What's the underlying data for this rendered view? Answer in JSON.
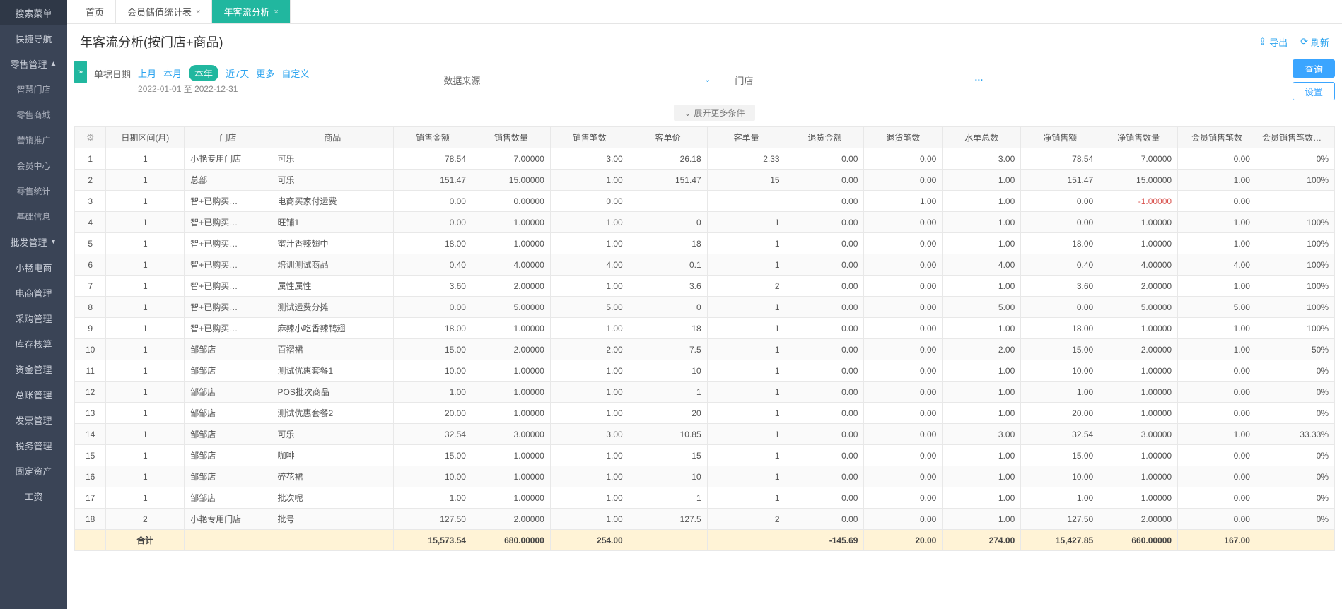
{
  "sidebar": {
    "items": [
      {
        "label": "搜索菜单",
        "sub": false
      },
      {
        "label": "快捷导航",
        "sub": false
      },
      {
        "label": "零售管理",
        "sub": false,
        "arrow": "▲"
      },
      {
        "label": "智慧门店",
        "sub": true
      },
      {
        "label": "零售商城",
        "sub": true
      },
      {
        "label": "营销推广",
        "sub": true
      },
      {
        "label": "会员中心",
        "sub": true
      },
      {
        "label": "零售统计",
        "sub": true
      },
      {
        "label": "基础信息",
        "sub": true
      },
      {
        "label": "批发管理",
        "sub": false,
        "arrow": "▼"
      },
      {
        "label": "小畅电商",
        "sub": false
      },
      {
        "label": "电商管理",
        "sub": false
      },
      {
        "label": "采购管理",
        "sub": false
      },
      {
        "label": "库存核算",
        "sub": false
      },
      {
        "label": "资金管理",
        "sub": false
      },
      {
        "label": "总账管理",
        "sub": false
      },
      {
        "label": "发票管理",
        "sub": false
      },
      {
        "label": "税务管理",
        "sub": false
      },
      {
        "label": "固定资产",
        "sub": false
      },
      {
        "label": "工资",
        "sub": false
      }
    ]
  },
  "tabs": [
    {
      "label": "首页",
      "closable": false,
      "active": false
    },
    {
      "label": "会员储值统计表",
      "closable": true,
      "active": false
    },
    {
      "label": "年客流分析",
      "closable": true,
      "active": true
    }
  ],
  "page": {
    "title": "年客流分析(按门店+商品)",
    "actions": {
      "export": "导出",
      "refresh": "刷新"
    }
  },
  "filters": {
    "date_label": "单据日期",
    "date_options": [
      "上月",
      "本月",
      "本年",
      "近7天",
      "更多",
      "自定义"
    ],
    "date_active": "本年",
    "date_range": "2022-01-01 至 2022-12-31",
    "source_label": "数据来源",
    "store_label": "门店",
    "query_btn": "查询",
    "setting_btn": "设置",
    "expand_btn": "展开更多条件"
  },
  "table": {
    "columns": [
      "",
      "日期区间(月)",
      "门店",
      "商品",
      "销售金额",
      "销售数量",
      "销售笔数",
      "客单价",
      "客单量",
      "退货金额",
      "退货笔数",
      "水单总数",
      "净销售额",
      "净销售数量",
      "会员销售笔数",
      "会员销售笔数占比"
    ],
    "rows": [
      [
        "1",
        "1",
        "小艳专用门店",
        "可乐",
        "78.54",
        "7.00000",
        "3.00",
        "26.18",
        "2.33",
        "0.00",
        "0.00",
        "3.00",
        "78.54",
        "7.00000",
        "0.00",
        "0%"
      ],
      [
        "2",
        "1",
        "总部",
        "可乐",
        "151.47",
        "15.00000",
        "1.00",
        "151.47",
        "15",
        "0.00",
        "0.00",
        "1.00",
        "151.47",
        "15.00000",
        "1.00",
        "100%"
      ],
      [
        "3",
        "1",
        "智+已购买…",
        "电商买家付运费",
        "0.00",
        "0.00000",
        "0.00",
        "",
        "",
        "0.00",
        "1.00",
        "1.00",
        "0.00",
        "-1.00000",
        "0.00",
        ""
      ],
      [
        "4",
        "1",
        "智+已购买…",
        "旺铺1",
        "0.00",
        "1.00000",
        "1.00",
        "0",
        "1",
        "0.00",
        "0.00",
        "1.00",
        "0.00",
        "1.00000",
        "1.00",
        "100%"
      ],
      [
        "5",
        "1",
        "智+已购买…",
        "蜜汁香辣翅中",
        "18.00",
        "1.00000",
        "1.00",
        "18",
        "1",
        "0.00",
        "0.00",
        "1.00",
        "18.00",
        "1.00000",
        "1.00",
        "100%"
      ],
      [
        "6",
        "1",
        "智+已购买…",
        "培训测试商品",
        "0.40",
        "4.00000",
        "4.00",
        "0.1",
        "1",
        "0.00",
        "0.00",
        "4.00",
        "0.40",
        "4.00000",
        "4.00",
        "100%"
      ],
      [
        "7",
        "1",
        "智+已购买…",
        "属性属性",
        "3.60",
        "2.00000",
        "1.00",
        "3.6",
        "2",
        "0.00",
        "0.00",
        "1.00",
        "3.60",
        "2.00000",
        "1.00",
        "100%"
      ],
      [
        "8",
        "1",
        "智+已购买…",
        "测试运费分摊",
        "0.00",
        "5.00000",
        "5.00",
        "0",
        "1",
        "0.00",
        "0.00",
        "5.00",
        "0.00",
        "5.00000",
        "5.00",
        "100%"
      ],
      [
        "9",
        "1",
        "智+已购买…",
        "麻辣小吃香辣鸭翅",
        "18.00",
        "1.00000",
        "1.00",
        "18",
        "1",
        "0.00",
        "0.00",
        "1.00",
        "18.00",
        "1.00000",
        "1.00",
        "100%"
      ],
      [
        "10",
        "1",
        "邹邹店",
        "百褶裙",
        "15.00",
        "2.00000",
        "2.00",
        "7.5",
        "1",
        "0.00",
        "0.00",
        "2.00",
        "15.00",
        "2.00000",
        "1.00",
        "50%"
      ],
      [
        "11",
        "1",
        "邹邹店",
        "测试优惠套餐1",
        "10.00",
        "1.00000",
        "1.00",
        "10",
        "1",
        "0.00",
        "0.00",
        "1.00",
        "10.00",
        "1.00000",
        "0.00",
        "0%"
      ],
      [
        "12",
        "1",
        "邹邹店",
        "POS批次商品",
        "1.00",
        "1.00000",
        "1.00",
        "1",
        "1",
        "0.00",
        "0.00",
        "1.00",
        "1.00",
        "1.00000",
        "0.00",
        "0%"
      ],
      [
        "13",
        "1",
        "邹邹店",
        "测试优惠套餐2",
        "20.00",
        "1.00000",
        "1.00",
        "20",
        "1",
        "0.00",
        "0.00",
        "1.00",
        "20.00",
        "1.00000",
        "0.00",
        "0%"
      ],
      [
        "14",
        "1",
        "邹邹店",
        "可乐",
        "32.54",
        "3.00000",
        "3.00",
        "10.85",
        "1",
        "0.00",
        "0.00",
        "3.00",
        "32.54",
        "3.00000",
        "1.00",
        "33.33%"
      ],
      [
        "15",
        "1",
        "邹邹店",
        "咖啡",
        "15.00",
        "1.00000",
        "1.00",
        "15",
        "1",
        "0.00",
        "0.00",
        "1.00",
        "15.00",
        "1.00000",
        "0.00",
        "0%"
      ],
      [
        "16",
        "1",
        "邹邹店",
        "碎花裙",
        "10.00",
        "1.00000",
        "1.00",
        "10",
        "1",
        "0.00",
        "0.00",
        "1.00",
        "10.00",
        "1.00000",
        "0.00",
        "0%"
      ],
      [
        "17",
        "1",
        "邹邹店",
        "批次呢",
        "1.00",
        "1.00000",
        "1.00",
        "1",
        "1",
        "0.00",
        "0.00",
        "1.00",
        "1.00",
        "1.00000",
        "0.00",
        "0%"
      ],
      [
        "18",
        "2",
        "小艳专用门店",
        "批号",
        "127.50",
        "2.00000",
        "1.00",
        "127.5",
        "2",
        "0.00",
        "0.00",
        "1.00",
        "127.50",
        "2.00000",
        "0.00",
        "0%"
      ]
    ],
    "total": {
      "label": "合计",
      "values": [
        "15,573.54",
        "680.00000",
        "254.00",
        "",
        "",
        "-145.69",
        "20.00",
        "274.00",
        "15,427.85",
        "660.00000",
        "167.00",
        ""
      ]
    }
  },
  "colors": {
    "sidebar_bg": "#3a4456",
    "accent_green": "#21b79f",
    "accent_blue": "#3aa5ff",
    "link_blue": "#2aa3ef",
    "total_bg": "#fff3d6",
    "negative": "#d9534f"
  }
}
